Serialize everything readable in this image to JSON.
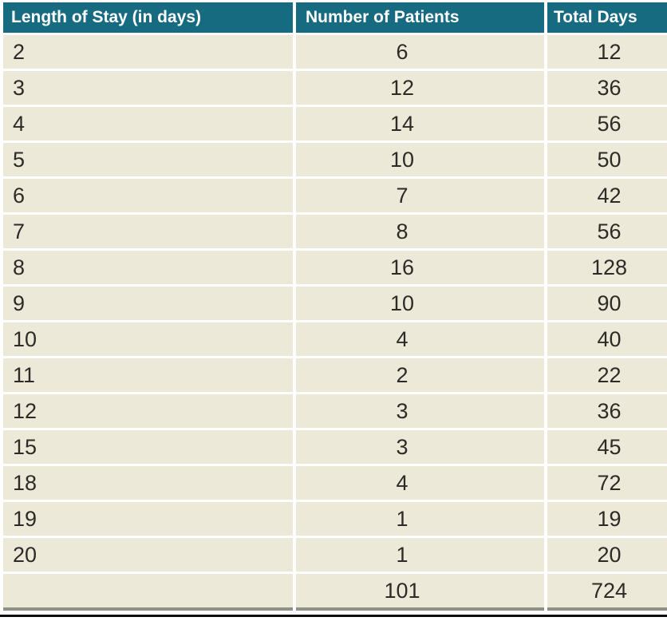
{
  "table": {
    "columns": [
      "Length of Stay (in days)",
      "Number of Patients",
      "Total Days"
    ],
    "rows": [
      [
        2,
        6,
        12
      ],
      [
        3,
        12,
        36
      ],
      [
        4,
        14,
        56
      ],
      [
        5,
        10,
        50
      ],
      [
        6,
        7,
        42
      ],
      [
        7,
        8,
        56
      ],
      [
        8,
        16,
        128
      ],
      [
        9,
        10,
        90
      ],
      [
        10,
        4,
        40
      ],
      [
        11,
        2,
        22
      ],
      [
        12,
        3,
        36
      ],
      [
        15,
        3,
        45
      ],
      [
        18,
        4,
        72
      ],
      [
        19,
        1,
        19
      ],
      [
        20,
        1,
        20
      ]
    ],
    "totals_row": [
      "",
      101,
      724
    ]
  },
  "chart_data": {
    "type": "table",
    "columns": [
      "Length of Stay (in days)",
      "Number of Patients",
      "Total Days"
    ],
    "rows": [
      [
        2,
        6,
        12
      ],
      [
        3,
        12,
        36
      ],
      [
        4,
        14,
        56
      ],
      [
        5,
        10,
        50
      ],
      [
        6,
        7,
        42
      ],
      [
        7,
        8,
        56
      ],
      [
        8,
        16,
        128
      ],
      [
        9,
        10,
        90
      ],
      [
        10,
        4,
        40
      ],
      [
        11,
        2,
        22
      ],
      [
        12,
        3,
        36
      ],
      [
        15,
        3,
        45
      ],
      [
        18,
        4,
        72
      ],
      [
        19,
        1,
        19
      ],
      [
        20,
        1,
        20
      ]
    ],
    "totals_row": [
      "",
      101,
      724
    ],
    "layout": {
      "header_position": "top",
      "grid": "white-gutters-between-cells",
      "totals_underline": "gray-rule",
      "page_bottom_rule": "black"
    }
  },
  "colors": {
    "header_bg": "#176B80",
    "header_text": "#FFFFFF",
    "row_bg": "#ECE9D8",
    "body_text": "#2D2B27",
    "gutter": "#FFFFFF",
    "gray_rule": "#8F9086",
    "black_rule": "#0B0B0B"
  }
}
